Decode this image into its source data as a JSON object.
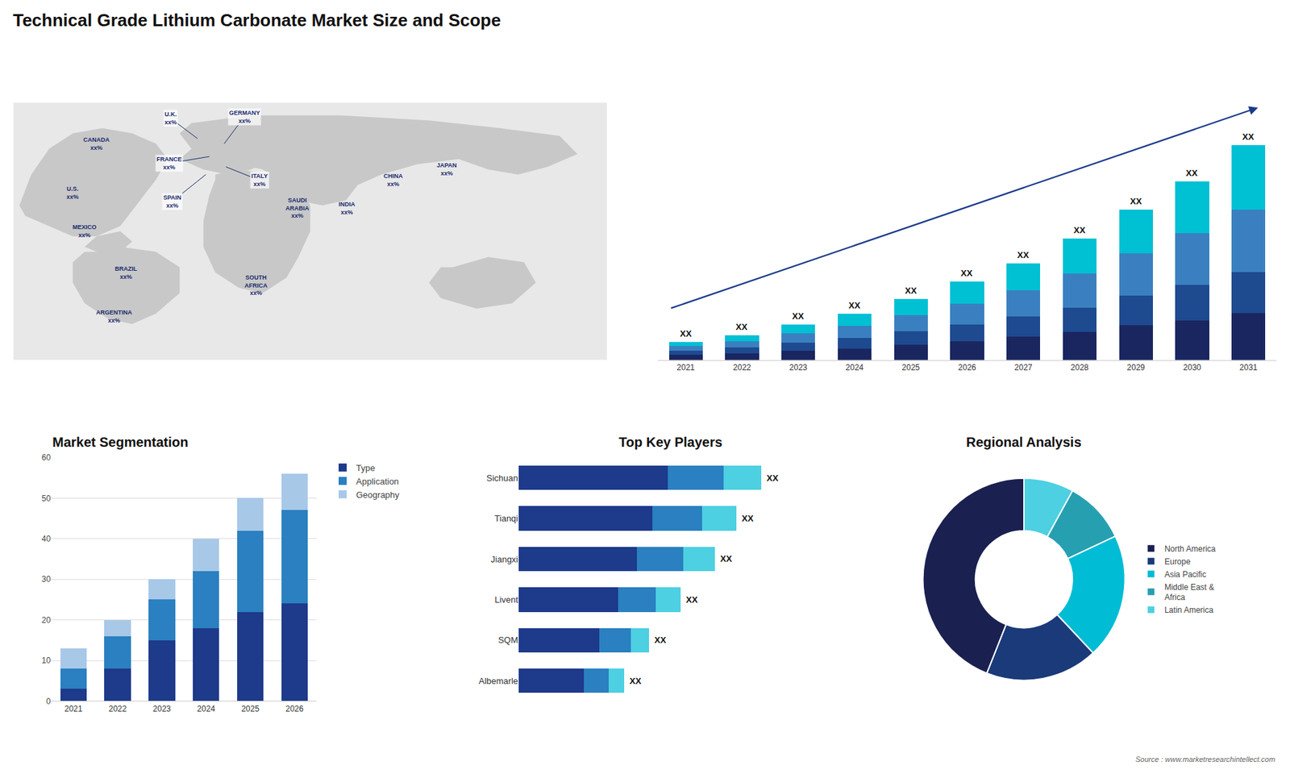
{
  "title": "Technical Grade Lithium Carbonate Market Size and Scope",
  "annotations": [
    {
      "text": "Source : www.marketresearchintellect.com"
    }
  ],
  "chart_data": [
    {
      "type": "map",
      "annotations": [
        {
          "text": "CANADA\nxx%"
        },
        {
          "text": "U.S.\nxx%"
        },
        {
          "text": "MEXICO\nxx%"
        },
        {
          "text": "BRAZIL\nxx%"
        },
        {
          "text": "ARGENTINA\nxx%"
        },
        {
          "text": "U.K.\nxx%"
        },
        {
          "text": "FRANCE\nxx%"
        },
        {
          "text": "SPAIN\nxx%"
        },
        {
          "text": "GERMANY\nxx%"
        },
        {
          "text": "ITALY\nxx%"
        },
        {
          "text": "SAUDI\nARABIA\nxx%"
        },
        {
          "text": "SOUTH\nAFRICA\nxx%"
        },
        {
          "text": "CHINA\nxx%"
        },
        {
          "text": "INDIA\nxx%"
        },
        {
          "text": "JAPAN\nxx%"
        }
      ]
    },
    {
      "type": "bar",
      "stacked": true,
      "categories": [
        "2021",
        "2022",
        "2023",
        "2024",
        "2025",
        "2026",
        "2027",
        "2028",
        "2029",
        "2030",
        "2031"
      ],
      "series": [
        {
          "color": "#1a2660",
          "values": [
            0.7,
            0.945,
            1.3,
            1.625,
            2.125,
            2.64,
            3.24,
            3.91,
            4.83,
            5.5,
            6.6
          ]
        },
        {
          "color": "#1e4a90",
          "values": [
            0.6,
            0.805,
            1.15,
            1.43,
            1.87,
            2.31,
            2.835,
            3.4,
            4.2,
            5,
            5.7
          ]
        },
        {
          "color": "#3a80c0",
          "values": [
            0.65,
            0.91,
            1.3,
            1.755,
            2.295,
            2.97,
            3.645,
            4.76,
            5.88,
            7.25,
            8.7
          ]
        },
        {
          "color": "#00c0d4",
          "values": [
            0.55,
            0.84,
            1.25,
            1.69,
            2.21,
            3.08,
            3.78,
            4.93,
            6.09,
            7.25,
            9
          ]
        }
      ],
      "ylim": [
        0,
        36
      ],
      "tick_labels": "x",
      "grid": false,
      "annotations": [
        {
          "x": "2021",
          "text": "XX"
        },
        {
          "x": "2022",
          "text": "XX"
        },
        {
          "x": "2023",
          "text": "XX"
        },
        {
          "x": "2024",
          "text": "XX"
        },
        {
          "x": "2025",
          "text": "XX"
        },
        {
          "x": "2026",
          "text": "XX"
        },
        {
          "x": "2027",
          "text": "XX"
        },
        {
          "x": "2028",
          "text": "XX"
        },
        {
          "x": "2029",
          "text": "XX"
        },
        {
          "x": "2030",
          "text": "XX"
        },
        {
          "x": "2031",
          "text": "XX"
        }
      ]
    },
    {
      "type": "bar",
      "title": "Market Segmentation",
      "stacked": true,
      "categories": [
        "2021",
        "2022",
        "2023",
        "2024",
        "2025",
        "2026"
      ],
      "series": [
        {
          "name": "Type",
          "color": "#1e3a8a",
          "values": [
            3,
            8,
            15,
            18,
            22,
            24
          ]
        },
        {
          "name": "Application",
          "color": "#2a80c0",
          "values": [
            5,
            8,
            10,
            14,
            20,
            23
          ]
        },
        {
          "name": "Geography",
          "color": "#a8c8e8",
          "values": [
            5,
            4,
            5,
            8,
            8,
            9
          ]
        }
      ],
      "ylim": [
        0,
        60
      ],
      "yticks": [
        0,
        10,
        20,
        30,
        40,
        50,
        60
      ],
      "grid": true,
      "legend": "right"
    },
    {
      "type": "bar",
      "title": "Top Key Players",
      "orientation": "horizontal",
      "stacked": true,
      "categories": [
        "Sichuan",
        "Tianqi",
        "Jiangxi",
        "Livent",
        "SQM",
        "Albemarle"
      ],
      "series": [
        {
          "color": "#1e3a8a",
          "values": [
            0.48,
            0.43,
            0.38,
            0.32,
            0.26,
            0.21
          ]
        },
        {
          "color": "#2a80c0",
          "values": [
            0.18,
            0.16,
            0.15,
            0.12,
            0.1,
            0.08
          ]
        },
        {
          "color": "#4dd0e1",
          "values": [
            0.12,
            0.11,
            0.1,
            0.08,
            0.06,
            0.05
          ]
        }
      ],
      "xlim": [
        0,
        0.975
      ],
      "tick_labels": "y",
      "grid": false,
      "annotations": [
        {
          "y": "Sichuan",
          "text": "XX"
        },
        {
          "y": "Tianqi",
          "text": "XX"
        },
        {
          "y": "Jiangxi",
          "text": "XX"
        },
        {
          "y": "Livent",
          "text": "XX"
        },
        {
          "y": "SQM",
          "text": "XX"
        },
        {
          "y": "Albemarle",
          "text": "XX"
        }
      ]
    },
    {
      "type": "pie",
      "title": "Regional Analysis",
      "categories": [
        "Latin America",
        "Middle East &\nAfrica",
        "Asia Pacific",
        "Europe",
        "North America"
      ],
      "values": [
        8,
        10,
        20,
        18,
        44
      ],
      "colors": [
        "#4dd0e1",
        "#26a0b0",
        "#00bcd4",
        "#1a3a7a",
        "#1a2050"
      ],
      "legend": "right"
    }
  ]
}
